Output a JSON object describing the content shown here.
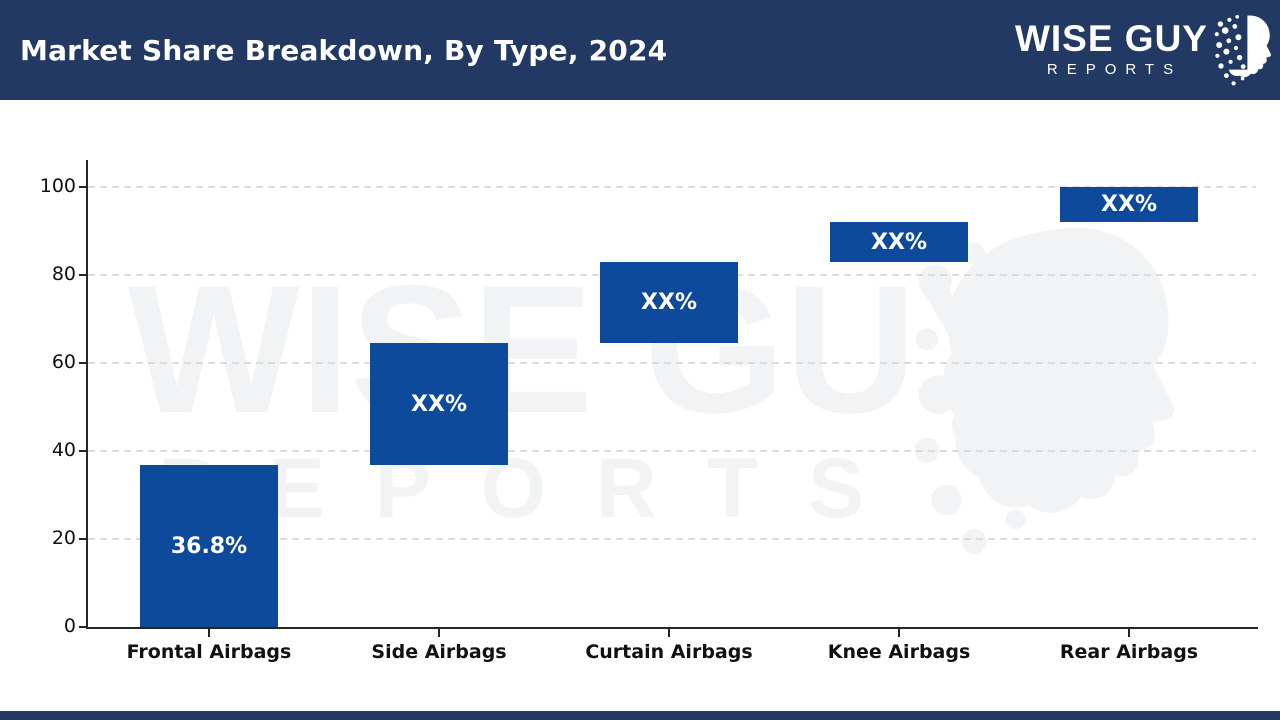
{
  "header": {
    "title": "Market Share Breakdown, By Type, 2024",
    "logo": {
      "line1": "WISE GUY",
      "line2": "REPORTS"
    }
  },
  "watermark": {
    "line1": "WISE GUY",
    "line2": "REPORTS"
  },
  "colors": {
    "header_bg": "#223963",
    "footer_bg": "#223963",
    "bar_fill": "#0d4a9c",
    "bar_label": "#ffffff",
    "gridline": "#dcdcdc",
    "axis": "#262626",
    "watermark": "#f2f3f5",
    "title_text": "#ffffff"
  },
  "chart_data": {
    "type": "bar",
    "subtype": "waterfall",
    "title": "Market Share Breakdown, By Type, 2024",
    "categories": [
      "Frontal Airbags",
      "Side Airbags",
      "Curtain Airbags",
      "Knee Airbags",
      "Rear Airbags"
    ],
    "bars": [
      {
        "category": "Frontal Airbags",
        "start": 0,
        "end": 36.8,
        "label": "36.8%"
      },
      {
        "category": "Side Airbags",
        "start": 36.8,
        "end": 64.5,
        "label": "XX%"
      },
      {
        "category": "Curtain Airbags",
        "start": 64.5,
        "end": 83,
        "label": "XX%"
      },
      {
        "category": "Knee Airbags",
        "start": 83,
        "end": 92,
        "label": "XX%"
      },
      {
        "category": "Rear Airbags",
        "start": 92,
        "end": 100,
        "label": "XX%"
      }
    ],
    "xlabel": "",
    "ylabel": "",
    "yticks": [
      0,
      20,
      40,
      60,
      80,
      100
    ],
    "ylim": [
      0,
      105.7
    ],
    "grid": "horizontal-dashed",
    "legend": null,
    "bar_color": "#0d4a9c"
  }
}
